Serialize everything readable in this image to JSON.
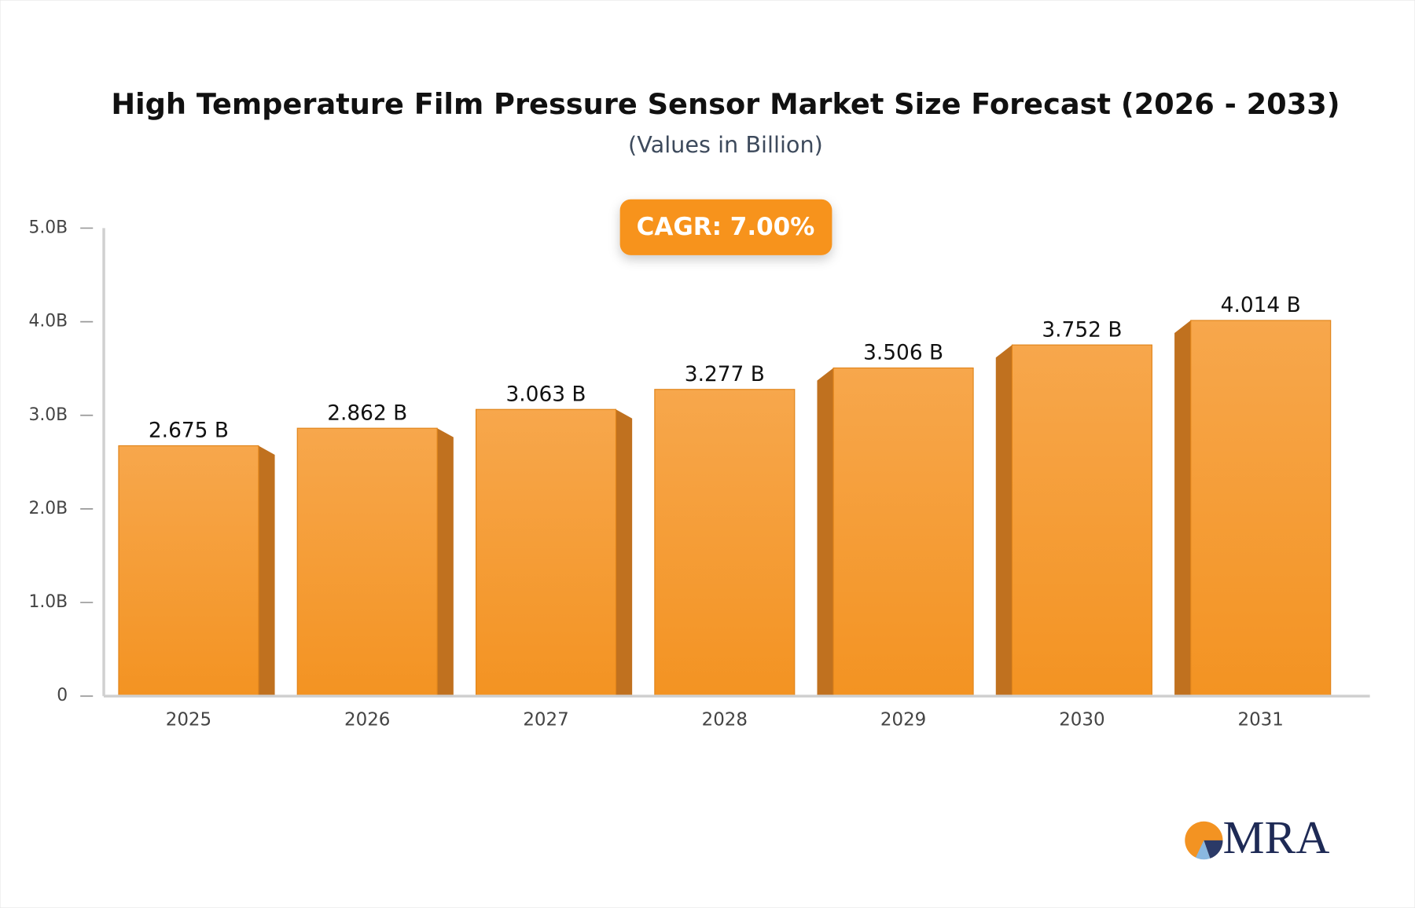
{
  "chart_data": {
    "type": "bar",
    "title": "High Temperature Film Pressure Sensor Market Size Forecast (2026 - 2033)",
    "subtitle": "(Values in Billion)",
    "annotation": "CAGR: 7.00%",
    "categories": [
      "2025",
      "2026",
      "2027",
      "2028",
      "2029",
      "2030",
      "2031"
    ],
    "values": [
      2.675,
      2.862,
      3.063,
      3.277,
      3.506,
      3.752,
      4.014
    ],
    "value_labels": [
      "2.675 B",
      "2.862 B",
      "3.063 B",
      "3.277 B",
      "3.506 B",
      "3.752 B",
      "4.014 B"
    ],
    "color": "#f59a2c",
    "ylim": [
      0,
      5
    ],
    "yticks": [
      0,
      {
        "value": 1,
        "label": "1.0B"
      },
      {
        "value": 2,
        "label": "2.0B"
      },
      {
        "value": 3,
        "label": "3.0B"
      },
      {
        "value": 4,
        "label": "4.0B"
      },
      {
        "value": 5,
        "label": "5.0B"
      }
    ],
    "grid": false
  },
  "logo": "MRA"
}
